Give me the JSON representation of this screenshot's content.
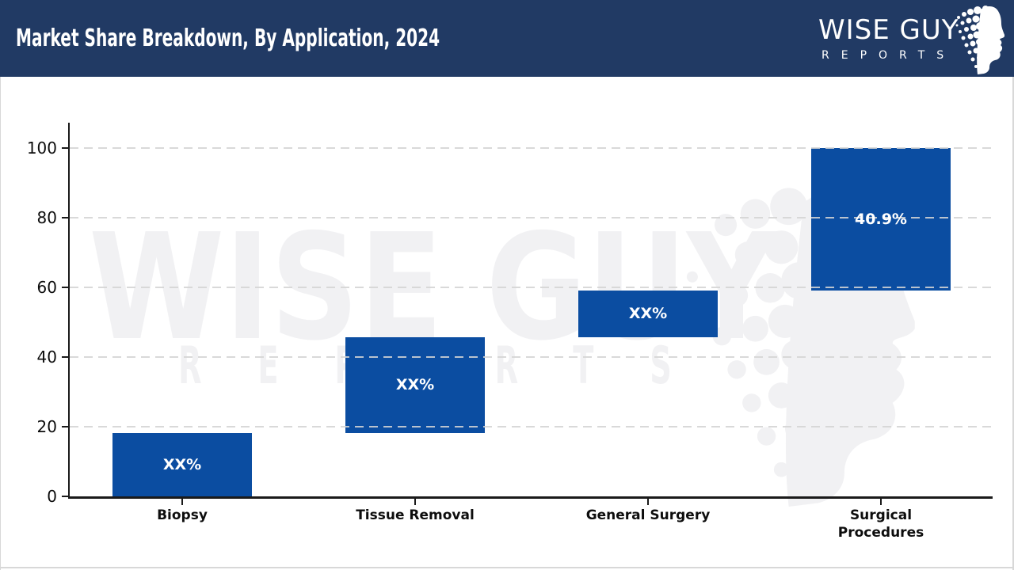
{
  "header": {
    "title": "Market Share Breakdown, By Application, 2024",
    "logo": {
      "wordmark": "WISE GUY",
      "subtext": "REPORTS"
    }
  },
  "watermark": {
    "line1": "WISE GUY",
    "line2": "REPORTS"
  },
  "colors": {
    "header_bg": "#213a64",
    "bar": "#0b4da1",
    "grid": "#d4d4d4",
    "axis": "#1a1a1a",
    "tick_text": "#0d0d0d",
    "bar_label_text": "#ffffff",
    "watermark": "#f1f1f3"
  },
  "chart_data": {
    "type": "bar",
    "subtype": "waterfall",
    "title": "Market Share Breakdown, By Application, 2024",
    "xlabel": "",
    "ylabel": "",
    "categories": [
      "Biopsy",
      "Tissue Removal",
      "General Surgery",
      "Surgical\nProcedures"
    ],
    "segments": [
      {
        "category": "Biopsy",
        "start": 0,
        "end": 18.2,
        "value": 18.2,
        "label": "XX%"
      },
      {
        "category": "Tissue Removal",
        "start": 18.2,
        "end": 45.7,
        "value": 27.5,
        "label": "XX%"
      },
      {
        "category": "General Surgery",
        "start": 45.7,
        "end": 59.1,
        "value": 13.4,
        "label": "XX%"
      },
      {
        "category": "Surgical\nProcedures",
        "start": 59.1,
        "end": 100,
        "value": 40.9,
        "label": "40.9%"
      }
    ],
    "ylim": [
      0,
      100
    ],
    "yticks": [
      0,
      20,
      40,
      60,
      80,
      100
    ],
    "grid": "dashed-horizontal",
    "legend": "none"
  }
}
